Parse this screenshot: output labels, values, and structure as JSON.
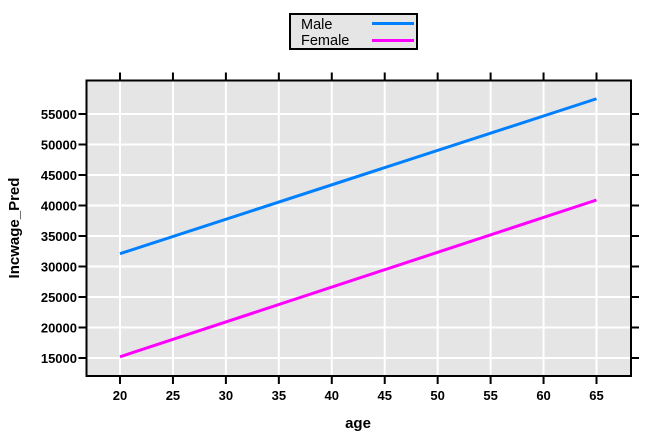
{
  "figure": {
    "background": "#ffffff",
    "panel_bg": "#e5e5e5",
    "grid_color": "#ffffff",
    "border_color": "#000000"
  },
  "legend": {
    "items": [
      {
        "label": "Male",
        "color": "#0080ff"
      },
      {
        "label": "Female",
        "color": "#ff00ff"
      }
    ]
  },
  "chart_data": {
    "type": "line",
    "title": "",
    "xlabel": "age",
    "ylabel": "Incwage_Pred",
    "x_ticks": [
      20,
      25,
      30,
      35,
      40,
      45,
      50,
      55,
      60,
      65
    ],
    "y_ticks": [
      15000,
      20000,
      25000,
      30000,
      35000,
      40000,
      45000,
      50000,
      55000
    ],
    "xlim": [
      16.8,
      68.3
    ],
    "ylim": [
      12000,
      60500
    ],
    "grid": true,
    "legend_position": "top-center-above-plot",
    "series": [
      {
        "name": "Male",
        "color": "#0080ff",
        "x": [
          20,
          65
        ],
        "values": [
          32100,
          57500
        ]
      },
      {
        "name": "Female",
        "color": "#ff00ff",
        "x": [
          20,
          65
        ],
        "values": [
          15200,
          40900
        ]
      }
    ]
  }
}
